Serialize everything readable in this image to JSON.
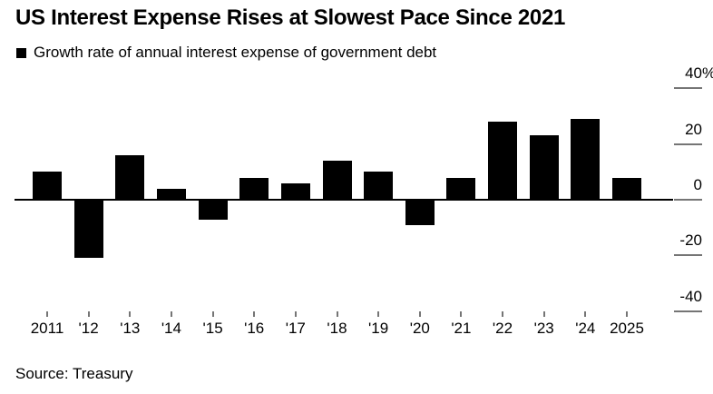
{
  "title": "US Interest Expense Rises at Slowest Pace Since 2021",
  "legend": {
    "label": "Growth rate of annual interest expense of government debt",
    "marker_color": "#000000"
  },
  "source": "Source: Treasury",
  "chart_data": {
    "type": "bar",
    "title": "US Interest Expense Rises at Slowest Pace Since 2021",
    "series_name": "Growth rate of annual interest expense of government debt",
    "categories": [
      "2011",
      "'12",
      "'13",
      "'14",
      "'15",
      "'16",
      "'17",
      "'18",
      "'19",
      "'20",
      "'21",
      "'22",
      "'23",
      "'24",
      "2025"
    ],
    "values": [
      10,
      -21,
      16,
      4,
      -7,
      8,
      6,
      14,
      10,
      -9,
      8,
      28,
      23,
      29,
      8
    ],
    "unit": "%",
    "xlabel": "",
    "ylabel": "",
    "ylim": [
      -40,
      40
    ],
    "yticks": [
      40,
      20,
      0,
      -20,
      -40
    ],
    "ytick_labels": [
      "40%",
      "20",
      "0",
      "-20",
      "-40"
    ],
    "grid": false,
    "legend_position": "top-left",
    "colors": {
      "bar": "#000000",
      "axis": "#000000",
      "tick": "#757575",
      "text": "#000000",
      "background": "#ffffff"
    }
  }
}
